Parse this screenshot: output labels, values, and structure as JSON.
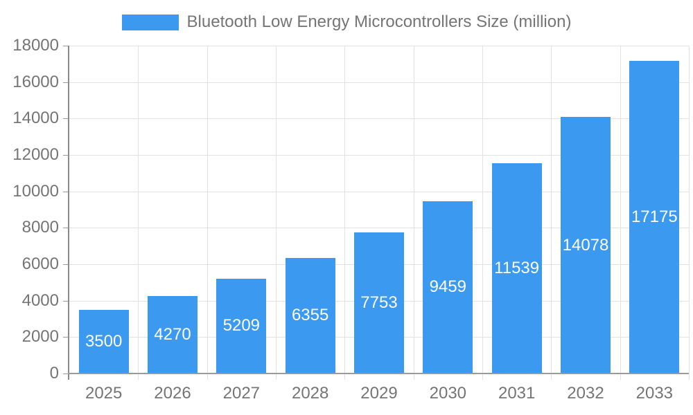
{
  "legend": {
    "label": "Bluetooth Low Energy Microcontrollers Size (million)",
    "swatch_color": "#3b99f0"
  },
  "chart_data": {
    "type": "bar",
    "title": "Bluetooth Low Energy Microcontrollers Size (million)",
    "series_name": "Bluetooth Low Energy Microcontrollers Size (million)",
    "categories": [
      "2025",
      "2026",
      "2027",
      "2028",
      "2029",
      "2030",
      "2031",
      "2032",
      "2033"
    ],
    "values": [
      3500,
      4270,
      5209,
      6355,
      7753,
      9459,
      11539,
      14078,
      17175
    ],
    "xlabel": "",
    "ylabel": "",
    "ylim": [
      0,
      18000
    ],
    "y_ticks": [
      0,
      2000,
      4000,
      6000,
      8000,
      10000,
      12000,
      14000,
      16000,
      18000
    ],
    "grid": true,
    "legend_position": "top-center",
    "value_labels": "inside-center-white"
  },
  "colors": {
    "bar": "#3b99f0",
    "axis_text": "#757575",
    "grid_line": "#e2e2e2",
    "axis_line": "#9a9a9a",
    "value_label": "#ffffff",
    "background": "#ffffff"
  }
}
